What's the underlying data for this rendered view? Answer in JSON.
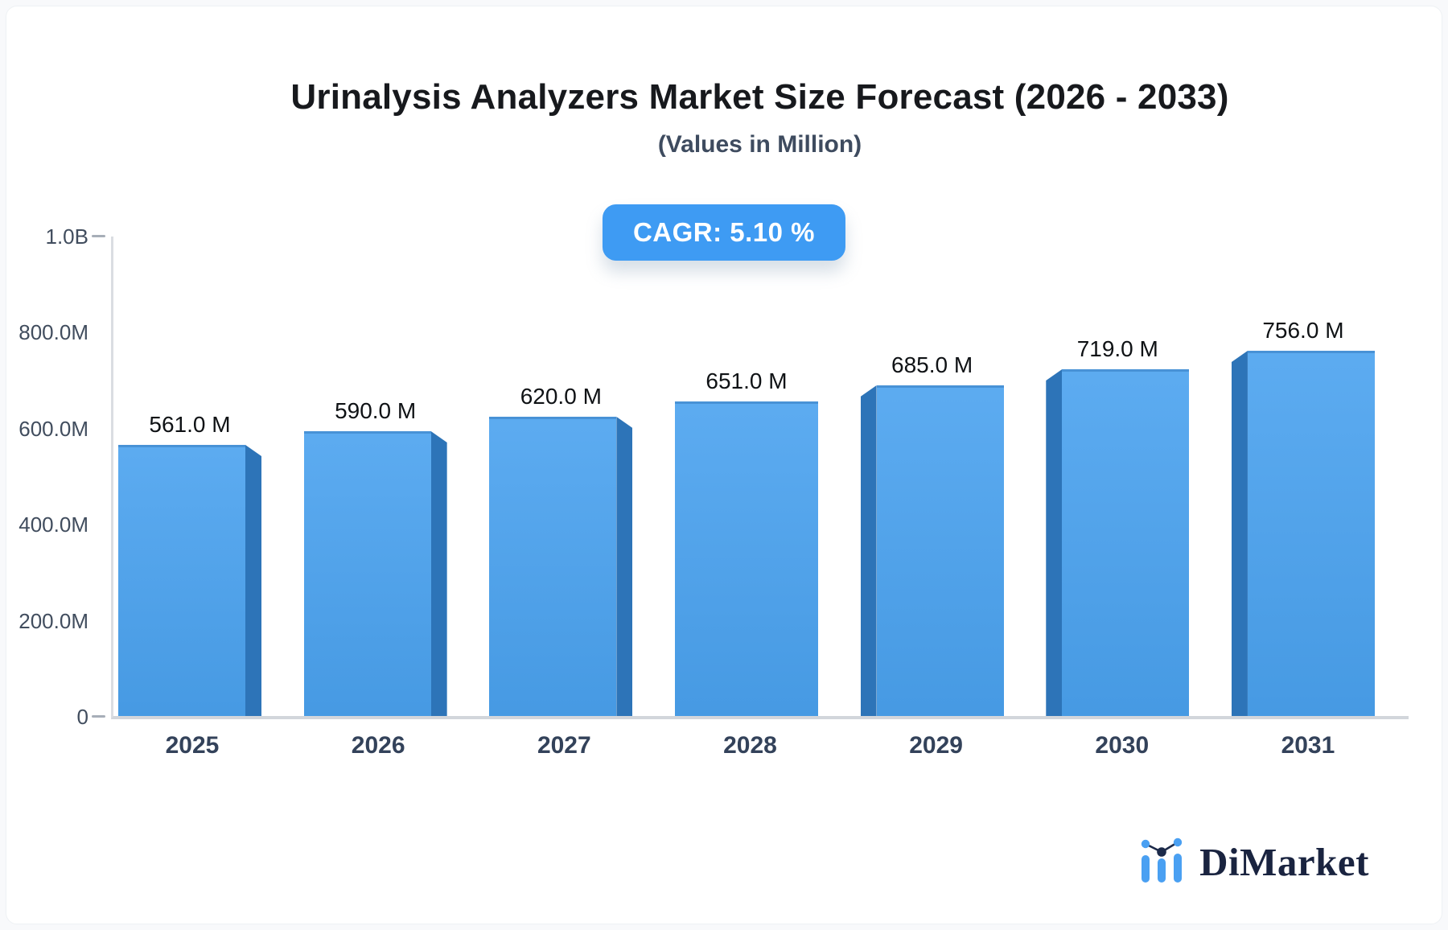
{
  "chart_data": {
    "type": "bar",
    "title": "Urinalysis Analyzers Market Size Forecast (2026 - 2033)",
    "subtitle": "(Values in Million)",
    "cagr_label": "CAGR: 5.10 %",
    "cagr_percent": 5.1,
    "categories": [
      "2025",
      "2026",
      "2027",
      "2028",
      "2029",
      "2030",
      "2031"
    ],
    "values": [
      561,
      590,
      620,
      651,
      685,
      719,
      756
    ],
    "value_labels": [
      "561.0 M",
      "590.0 M",
      "620.0 M",
      "651.0 M",
      "685.0 M",
      "719.0 M",
      "756.0 M"
    ],
    "xlabel": "",
    "ylabel": "",
    "ylim": [
      0,
      1000
    ],
    "yticks": [
      1000,
      800,
      600,
      400,
      200,
      0
    ],
    "ytick_labels": [
      "1.0B",
      "800.0M",
      "600.0M",
      "400.0M",
      "200.0M",
      "0"
    ],
    "grid": false,
    "legend": false,
    "bar_color": "#4aa2ef",
    "bar_side_color": "#2d74b8",
    "badge_color": "#3e9bf3"
  },
  "branding": {
    "logo_text": "DiMarket"
  }
}
